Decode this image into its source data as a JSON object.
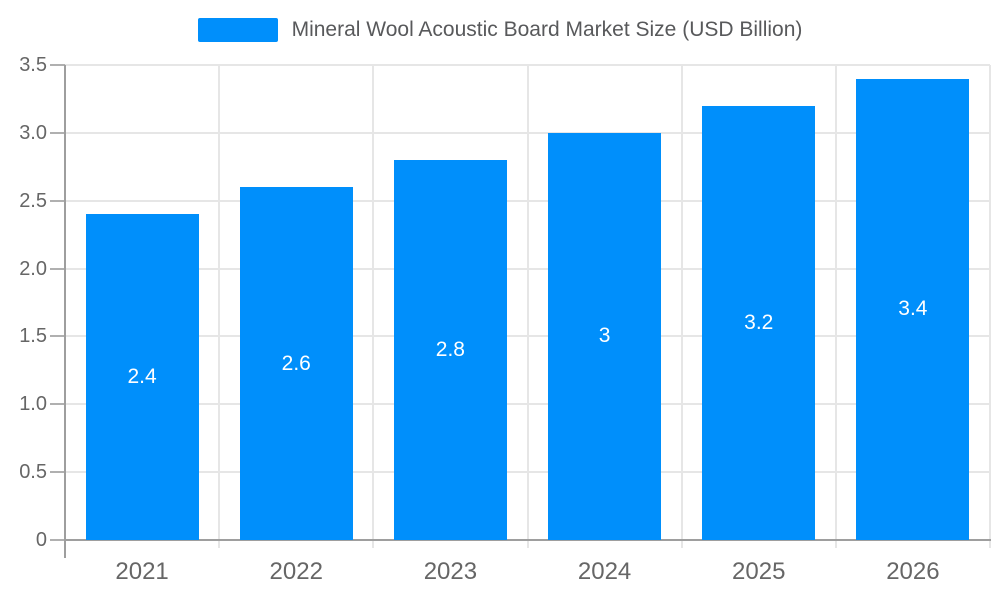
{
  "legend": {
    "label": "Mineral Wool Acoustic Board Market Size (USD Billion)"
  },
  "chart_data": {
    "type": "bar",
    "title": "Mineral Wool Acoustic Board Market Size (USD Billion)",
    "categories": [
      "2021",
      "2022",
      "2023",
      "2024",
      "2025",
      "2026"
    ],
    "values": [
      2.4,
      2.6,
      2.8,
      3,
      3.2,
      3.4
    ],
    "value_labels": [
      "2.4",
      "2.6",
      "2.8",
      "3",
      "3.2",
      "3.4"
    ],
    "xlabel": "",
    "ylabel": "",
    "ylim": [
      0,
      3.5
    ],
    "yticks": [
      0,
      0.5,
      1,
      1.5,
      2,
      2.5,
      3,
      3.5
    ],
    "ytick_labels": [
      "0",
      "0.5",
      "1.0",
      "1.5",
      "2.0",
      "2.5",
      "3.0",
      "3.5"
    ],
    "grid": true,
    "legend_position": "top",
    "colors": {
      "bar": "#008FFB",
      "bar_label": "#ffffff",
      "grid": "#e6e6e6",
      "axis": "#9e9e9e",
      "tick": "#b0b0b0",
      "tick_label": "#666666",
      "title": "#58595b",
      "background": "#ffffff"
    }
  }
}
